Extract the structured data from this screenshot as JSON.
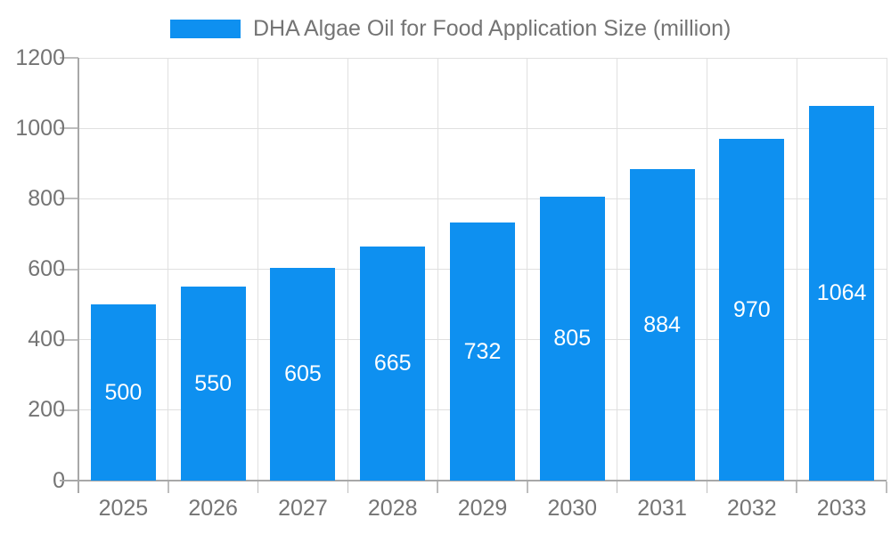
{
  "legend": {
    "items": [
      {
        "label": "DHA Algae Oil for Food Application Size (million)",
        "color": "#0E90F0"
      }
    ]
  },
  "chart_data": {
    "type": "bar",
    "title": "DHA Algae Oil for Food Application Size (million)",
    "categories": [
      "2025",
      "2026",
      "2027",
      "2028",
      "2029",
      "2030",
      "2031",
      "2032",
      "2033"
    ],
    "series": [
      {
        "name": "DHA Algae Oil for Food Application Size (million)",
        "color": "#0E90F0",
        "values": [
          500,
          550,
          605,
          665,
          732,
          805,
          884,
          970,
          1064
        ]
      }
    ],
    "value_labels": [
      "500",
      "550",
      "605",
      "665",
      "732",
      "805",
      "884",
      "970",
      "1064"
    ],
    "xlabel": "",
    "ylabel": "",
    "ylim": [
      0,
      1200
    ],
    "yticks": [
      0,
      200,
      400,
      600,
      800,
      1000,
      1200
    ],
    "grid": true,
    "legend_position": "top",
    "value_label_position": "inside-center",
    "value_label_color": "#FFFFFF"
  },
  "colors": {
    "bar": "#0E90F0",
    "axis_text": "#747474",
    "gridline": "#E0E0E0",
    "tick": "#BDBDBD",
    "axis_line": "#A8A8A8",
    "background": "#FFFFFF"
  }
}
